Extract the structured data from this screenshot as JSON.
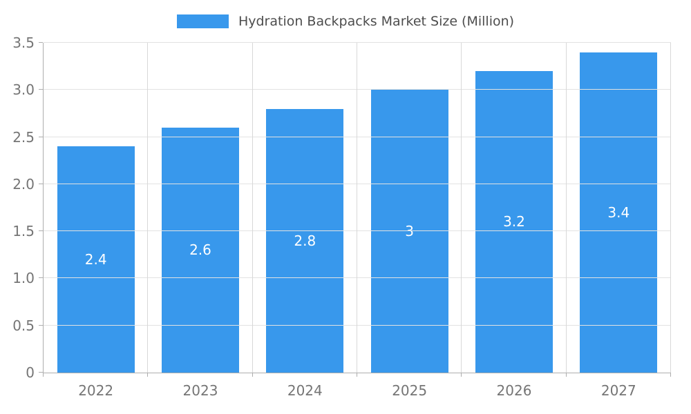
{
  "legend": {
    "label": "Hydration Backpacks Market Size (Million)"
  },
  "chart_data": {
    "type": "bar",
    "title": "Hydration Backpacks Market Size (Million)",
    "categories": [
      "2022",
      "2023",
      "2024",
      "2025",
      "2026",
      "2027"
    ],
    "values": [
      2.4,
      2.6,
      2.8,
      3,
      3.2,
      3.4
    ],
    "value_labels": [
      "2.4",
      "2.6",
      "2.8",
      "3",
      "3.2",
      "3.4"
    ],
    "xlabel": "",
    "ylabel": "",
    "ylim": [
      0,
      3.5
    ],
    "yticks": [
      {
        "value": 0,
        "label": "0"
      },
      {
        "value": 0.5,
        "label": "0.5"
      },
      {
        "value": 1,
        "label": "1.0"
      },
      {
        "value": 1.5,
        "label": "1.5"
      },
      {
        "value": 2,
        "label": "2.0"
      },
      {
        "value": 2.5,
        "label": "2.5"
      },
      {
        "value": 3,
        "label": "3.0"
      },
      {
        "value": 3.5,
        "label": "3.5"
      }
    ],
    "grid": true,
    "legend_position": "top",
    "bar_color": "#3898EC",
    "value_label_color": "#FFFFFF",
    "axis_label_color": "#757575",
    "title_color": "#4D4D4D"
  }
}
